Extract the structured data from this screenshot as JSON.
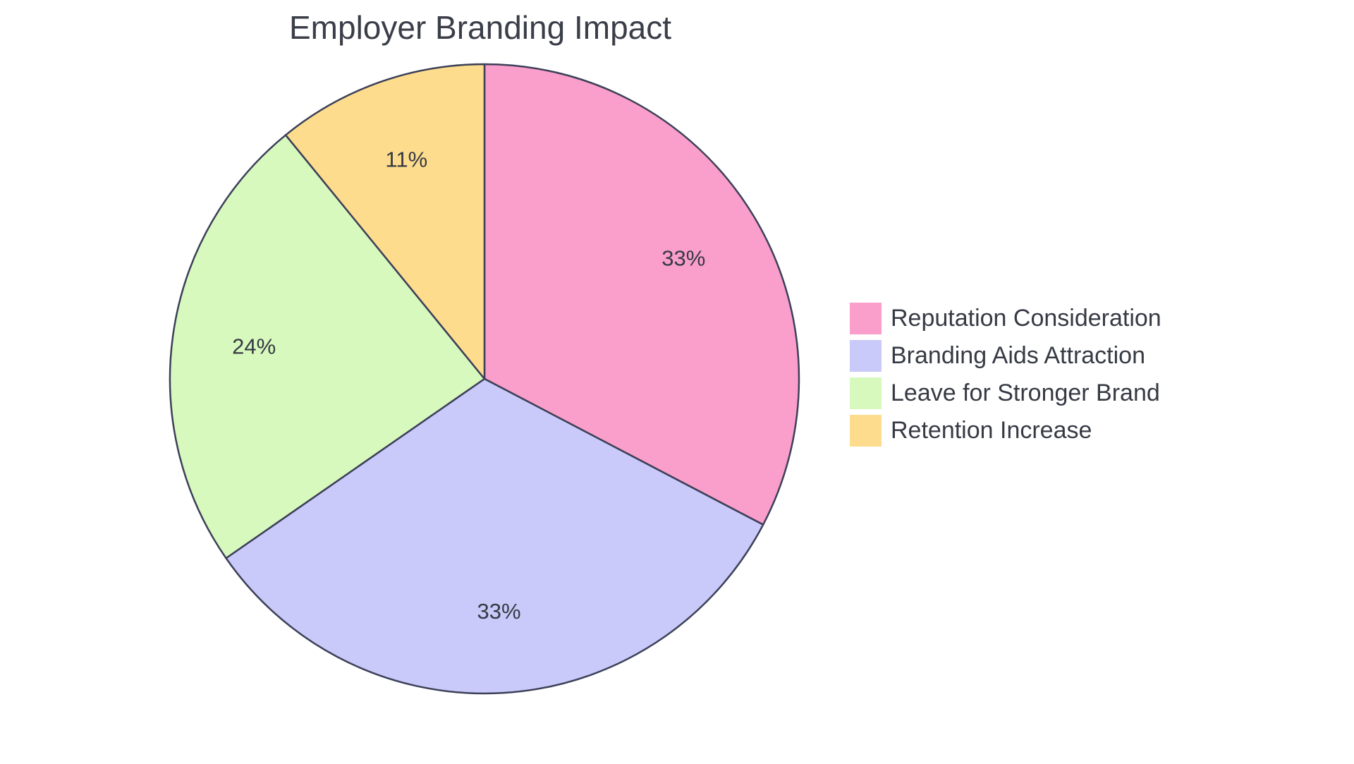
{
  "title": "Employer Branding Impact",
  "chart_data": {
    "type": "pie",
    "title": "Employer Branding Impact",
    "start_angle_deg": 90,
    "direction": "clockwise",
    "legend_position": "right",
    "grid": false,
    "stroke_color": "#3c4058",
    "label_color": "#363a44",
    "slices": [
      {
        "label": "Reputation Consideration",
        "value": 33,
        "pct_label": "33%",
        "color": "#fa9ecb"
      },
      {
        "label": "Branding Aids Attraction",
        "value": 33,
        "pct_label": "33%",
        "color": "#c9caf9"
      },
      {
        "label": "Leave for Stronger Brand",
        "value": 24,
        "pct_label": "24%",
        "color": "#d8f9be"
      },
      {
        "label": "Retention Increase",
        "value": 11,
        "pct_label": "11%",
        "color": "#fddc8d"
      }
    ]
  }
}
